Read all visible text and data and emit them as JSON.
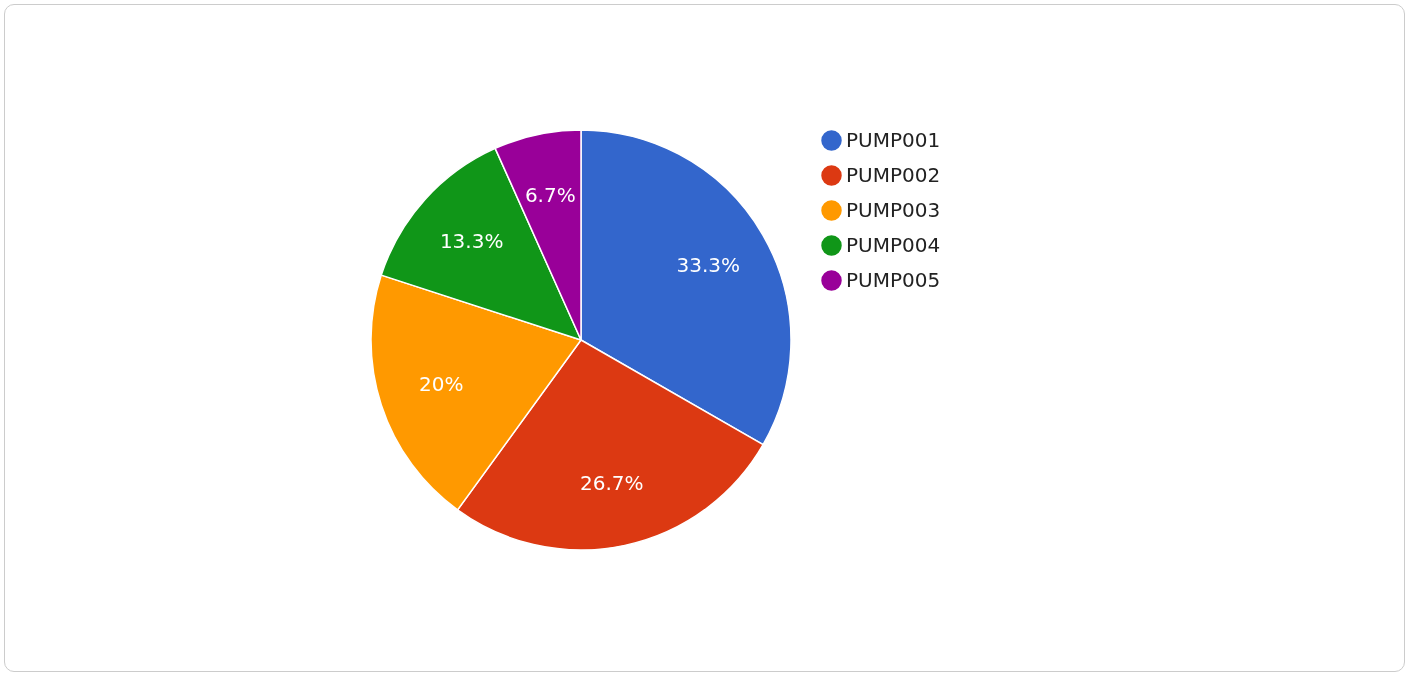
{
  "chart_data": {
    "type": "pie",
    "categories": [
      "PUMP001",
      "PUMP002",
      "PUMP003",
      "PUMP004",
      "PUMP005"
    ],
    "values": [
      33.3,
      26.7,
      20,
      13.3,
      6.7
    ],
    "value_labels": [
      "33.3%",
      "26.7%",
      "20%",
      "13.3%",
      "6.7%"
    ],
    "colors": [
      "#3366cc",
      "#dc3912",
      "#ff9900",
      "#109618",
      "#990099"
    ],
    "legend": "right"
  }
}
